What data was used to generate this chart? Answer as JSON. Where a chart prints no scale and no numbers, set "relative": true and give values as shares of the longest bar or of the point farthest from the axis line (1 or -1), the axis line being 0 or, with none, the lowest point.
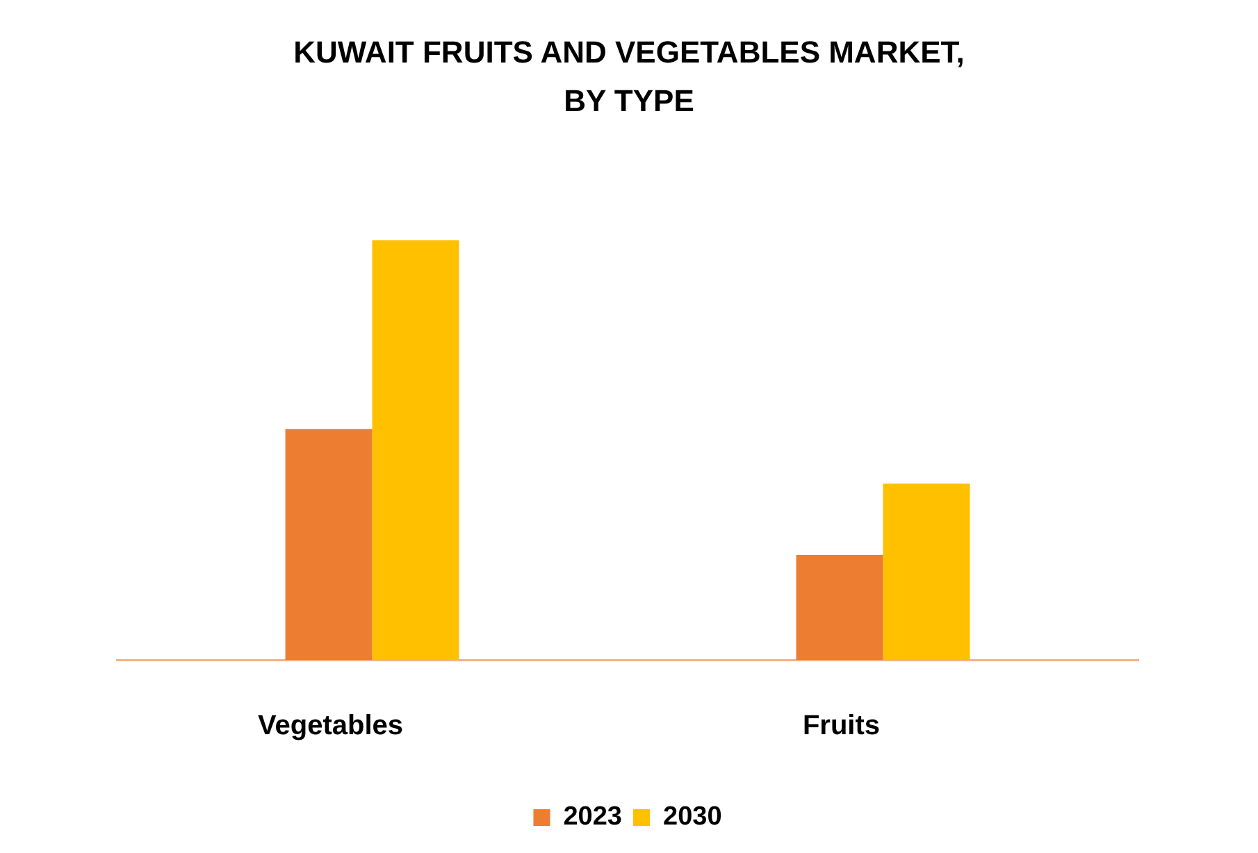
{
  "chart_data": {
    "type": "bar",
    "title": "KUWAIT FRUITS AND VEGETABLES MARKET, BY TYPE",
    "categories": [
      "Vegetables",
      "Fruits"
    ],
    "series": [
      {
        "name": "2023",
        "color": "#ed7d31",
        "values": [
          0.55,
          0.25
        ]
      },
      {
        "name": "2030",
        "color": "#ffc000",
        "values": [
          1,
          0.42
        ]
      }
    ],
    "relative": true,
    "grid": false,
    "legend": "bottom"
  }
}
